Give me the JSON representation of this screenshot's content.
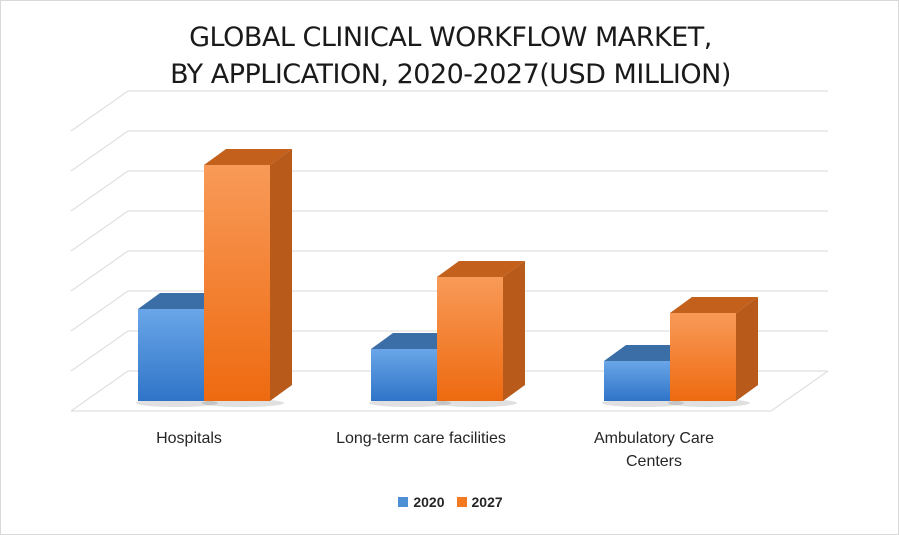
{
  "chart_data": {
    "type": "bar",
    "title_lines": [
      "GLOBAL CLINICAL WORKFLOW MARKET,",
      "BY APPLICATION, 2020-2027(USD MILLION)"
    ],
    "categories": [
      "Hospitals",
      "Long-term care facilities",
      "Ambulatory Care Centers"
    ],
    "series": [
      {
        "name": "2020",
        "values": [
          2.3,
          1.3,
          1.0
        ],
        "color": "#4f8fd6"
      },
      {
        "name": "2027",
        "values": [
          5.9,
          3.1,
          2.2
        ],
        "color": "#f47920"
      }
    ],
    "ylim": [
      0,
      7
    ],
    "grid": true,
    "legend_position": "bottom",
    "style": "3d-clustered-column"
  }
}
